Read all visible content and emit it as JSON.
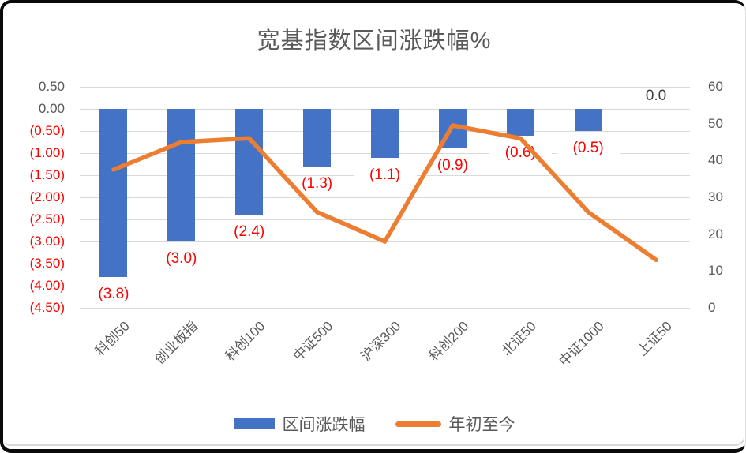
{
  "chart_data": {
    "type": "bar+line",
    "title": "宽基指数区间涨跌幅%",
    "categories": [
      "科创50",
      "创业板指",
      "科创100",
      "中证500",
      "沪深300",
      "科创200",
      "北证50",
      "中证1000",
      "上证50"
    ],
    "series": [
      {
        "name": "区间涨跌幅",
        "type": "bar",
        "axis": "left",
        "values": [
          -3.8,
          -3.0,
          -2.4,
          -1.3,
          -1.1,
          -0.9,
          -0.6,
          -0.5,
          0.0
        ],
        "data_labels": [
          "(3.8)",
          "(3.0)",
          "(2.4)",
          "(1.3)",
          "(1.1)",
          "(0.9)",
          "(0.6)",
          "(0.5)",
          "0.0"
        ]
      },
      {
        "name": "年初至今",
        "type": "line",
        "axis": "right",
        "values": [
          37.5,
          45,
          46,
          26,
          18,
          49.5,
          46,
          26,
          13
        ]
      }
    ],
    "left_axis": {
      "ticks": [
        "0.50",
        "0.00",
        "(0.50)",
        "(1.00)",
        "(1.50)",
        "(2.00)",
        "(2.50)",
        "(3.00)",
        "(3.50)",
        "(4.00)",
        "(4.50)"
      ],
      "max": 0.5,
      "min": -4.5
    },
    "right_axis": {
      "ticks": [
        "60",
        "50",
        "40",
        "30",
        "20",
        "10",
        "0"
      ],
      "max": 60,
      "min": 0
    },
    "legend": [
      "区间涨跌幅",
      "年初至今"
    ],
    "grid": "horizontal",
    "legend_position": "bottom",
    "colors": {
      "bar": "#4472C4",
      "line": "#ED7D31",
      "negative_label": "#FF0000",
      "axis_text": "#595959",
      "gridline": "#D9D9D9",
      "title_text": "#595959"
    }
  }
}
